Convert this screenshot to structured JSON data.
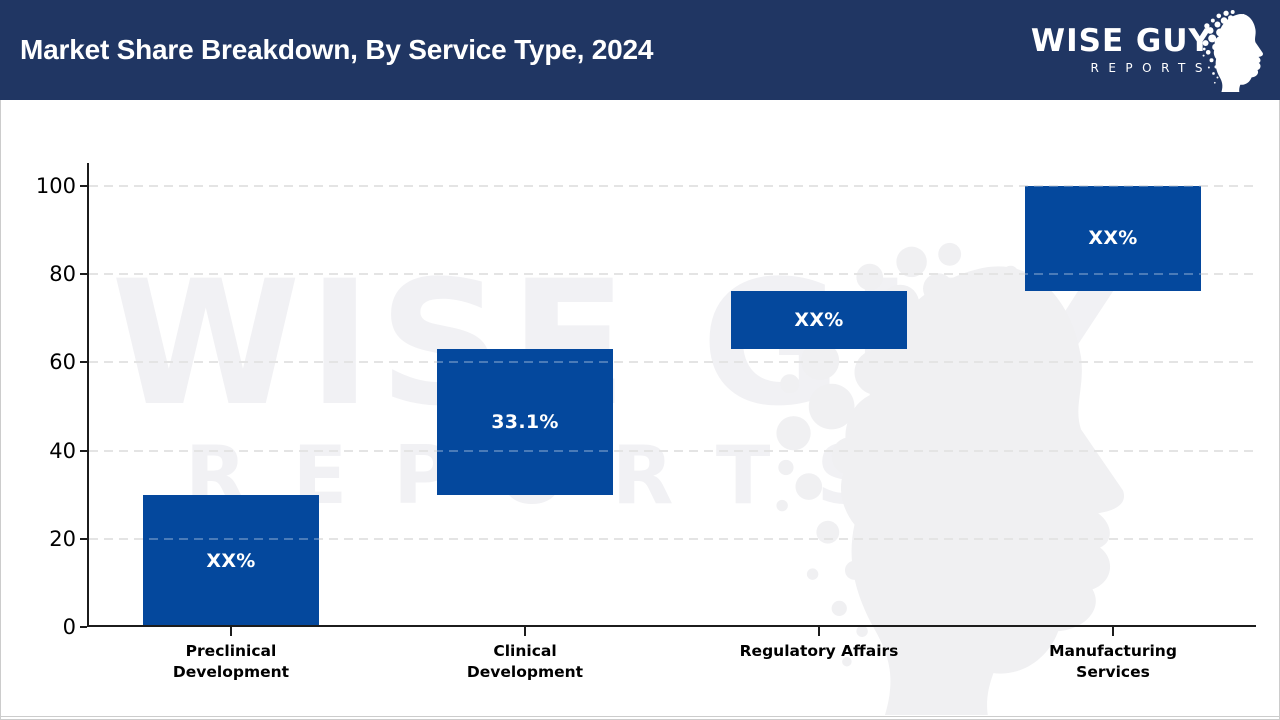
{
  "header": {
    "title": "Market Share Breakdown, By Service Type, 2024"
  },
  "logo": {
    "line1": "WISE GUY",
    "line2": "REPORTS"
  },
  "watermark": {
    "line1": "WISE GUY",
    "line2": "REPORTS"
  },
  "colors": {
    "header_bg": "#203663",
    "bar": "#04489d",
    "bar_label": "#ffffff",
    "grid": "#d9d9d9",
    "axis": "#1c1c1c",
    "watermark": "#f1f1f4"
  },
  "chart_data": {
    "type": "bar",
    "subtype": "waterfall",
    "title": "Market Share Breakdown, By Service Type, 2024",
    "xlabel": "",
    "ylabel": "",
    "categories": [
      [
        "Preclinical",
        "Development"
      ],
      [
        "Clinical",
        "Development"
      ],
      [
        "Regulatory Affairs"
      ],
      [
        "Manufacturing",
        "Services"
      ]
    ],
    "bars": [
      {
        "name": "Preclinical Development",
        "base": 0,
        "top": 30,
        "label": "XX%"
      },
      {
        "name": "Clinical Development",
        "base": 30,
        "top": 63.1,
        "label": "33.1%",
        "value": 33.1
      },
      {
        "name": "Regulatory Affairs",
        "base": 63.1,
        "top": 76.2,
        "label": "XX%"
      },
      {
        "name": "Manufacturing Services",
        "base": 76.2,
        "top": 100,
        "label": "XX%"
      }
    ],
    "yticks": [
      0,
      20,
      40,
      60,
      80,
      100
    ],
    "ylim": [
      0,
      105
    ],
    "grid": "horizontal-dashed",
    "legend": null
  }
}
